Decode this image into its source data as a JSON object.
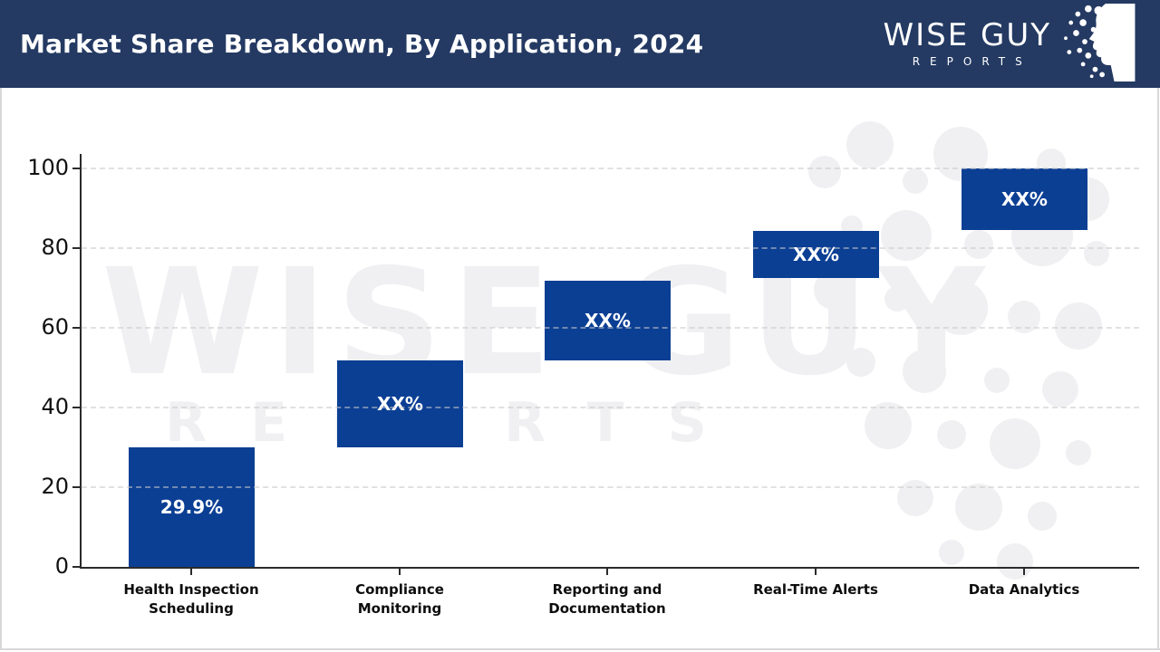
{
  "header": {
    "title": "Market Share Breakdown, By Application, 2024",
    "bg_color": "#243a63",
    "logo": {
      "line1": "WISE GUY",
      "line2": "REPORTS"
    }
  },
  "watermark": {
    "line1": "WISE GUY",
    "line2": "REPORTS"
  },
  "chart_data": {
    "type": "bar",
    "subtype": "floating-waterfall",
    "title": "Market Share Breakdown, By Application, 2024",
    "categories": [
      "Health Inspection Scheduling",
      "Compliance Monitoring",
      "Reporting and Documentation",
      "Real-Time Alerts",
      "Data Analytics"
    ],
    "segments": [
      {
        "label": "29.9%",
        "start": 0,
        "end": 29.9,
        "size": 29.9
      },
      {
        "label": "XX%",
        "start": 30.1,
        "end": 51.8,
        "size": 21.7
      },
      {
        "label": "XX%",
        "start": 51.9,
        "end": 71.9,
        "size": 20.0
      },
      {
        "label": "XX%",
        "start": 72.6,
        "end": 84.4,
        "size": 11.8
      },
      {
        "label": "XX%",
        "start": 84.6,
        "end": 99.9,
        "size": 15.3
      }
    ],
    "y_ticks": [
      0,
      20,
      40,
      60,
      80,
      100
    ],
    "ylim": [
      0,
      104
    ],
    "grid": "horizontal dashed",
    "bar_color": "#0b3f94",
    "label_color": "#ffffff",
    "axis_color": "#2b2b2b"
  }
}
